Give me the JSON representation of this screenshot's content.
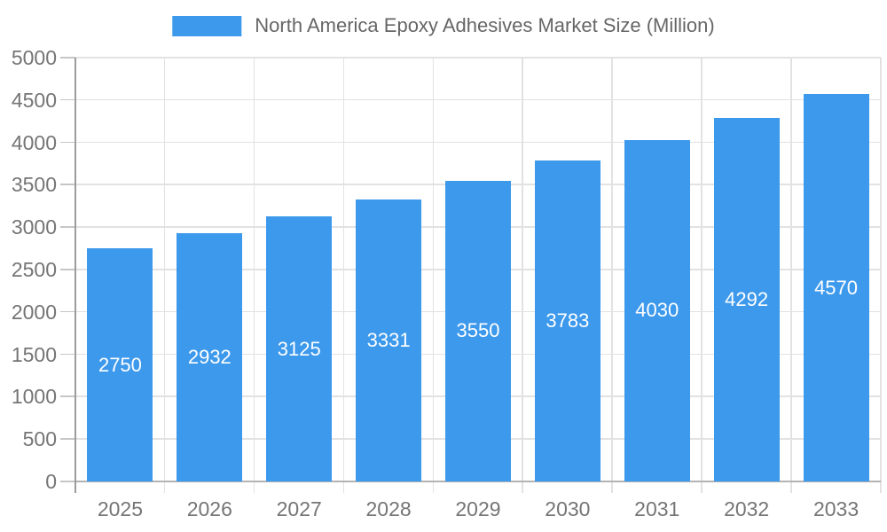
{
  "chart_data": {
    "type": "bar",
    "title": "North America Epoxy Adhesives Market Size (Million)",
    "categories": [
      "2025",
      "2026",
      "2027",
      "2028",
      "2029",
      "2030",
      "2031",
      "2032",
      "2033"
    ],
    "values": [
      2750,
      2932,
      3125,
      3331,
      3550,
      3783,
      4030,
      4292,
      4570
    ],
    "series": [
      {
        "name": "North America Epoxy Adhesives Market Size (Million)",
        "values": [
          2750,
          2932,
          3125,
          3331,
          3550,
          3783,
          4030,
          4292,
          4570
        ]
      }
    ],
    "xlabel": "",
    "ylabel": "",
    "ylim": [
      0,
      5000
    ],
    "ytick_step": 500,
    "yticks": [
      0,
      500,
      1000,
      1500,
      2000,
      2500,
      3000,
      3500,
      4000,
      4500,
      5000
    ],
    "grid": true,
    "legend_position": "top-center",
    "value_labels": "inside-center-white",
    "colors": {
      "bar": "#3D99EC",
      "value_label": "#ffffff",
      "gridline": "#e2e2e2",
      "axis_y_line": "#9c9c9c",
      "axis_x_line": "#b3b3b3",
      "y_tick": "#c6c6c6",
      "x_tick": "#e2e2e2",
      "axis_label_text": "#757575",
      "legend_text": "#666666",
      "background": "#ffffff"
    }
  }
}
